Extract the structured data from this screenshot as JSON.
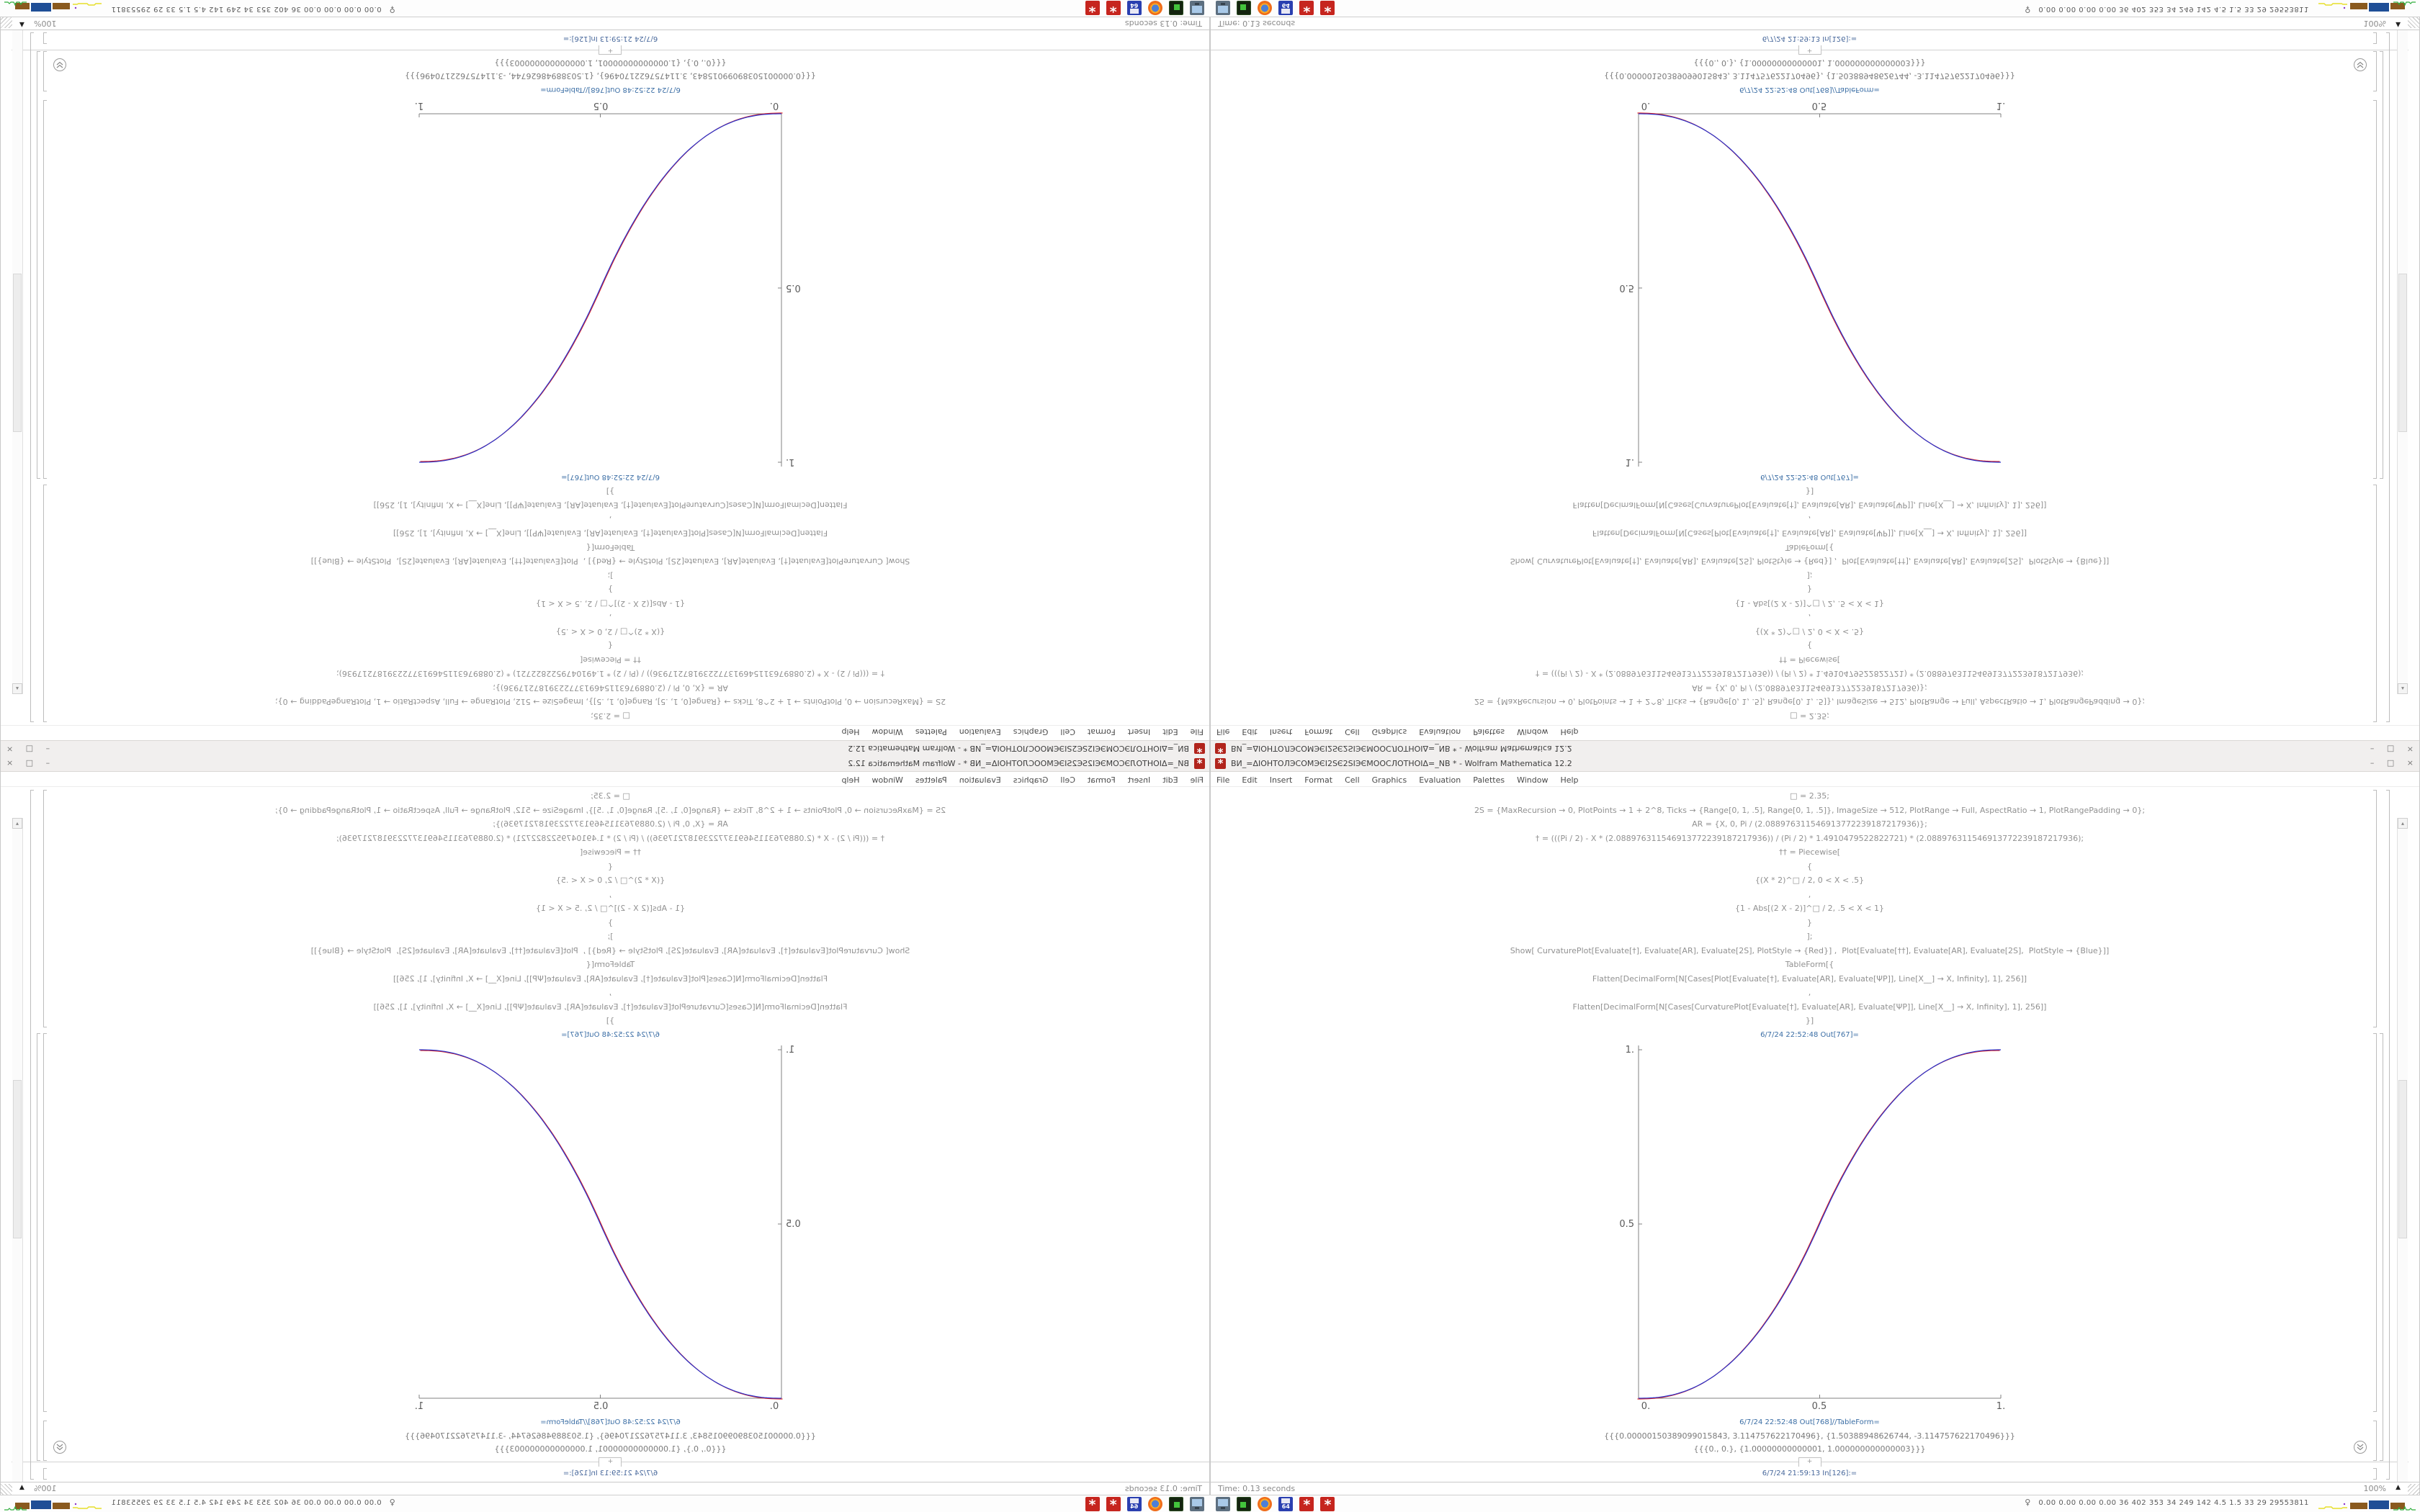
{
  "window": {
    "title": "ВИ_=ΔІОНТОЛЭСОМЭЄІ2SЄ2SІЭЄМООСЛОТНОІΔ=_NB * - Wolfram Mathematica 12.2",
    "menu": [
      "File",
      "Edit",
      "Insert",
      "Format",
      "Cell",
      "Graphics",
      "Evaluation",
      "Palettes",
      "Window",
      "Help"
    ],
    "buttons": {
      "minimize": "–",
      "maximize": "□",
      "close": "×"
    },
    "scroll_up_arrow": "▴"
  },
  "notebook": {
    "code_lines": [
      "□ = 2.35;",
      "2S = {MaxRecursion → 0, PlotPoints → 1 + 2^8, Ticks → {Range[0, 1, .5], Range[0, 1, .5]}, ImageSize → 512, PlotRange → Full, AspectRatio → 1, PlotRangePadding → 0};",
      "ΑR = {X, 0, Pi / (2.088976311546913772239187217936)};",
      "† = (((Pi / 2) - X * (2.088976311546913772239187217936)) / (Pi / 2) * 1.4910479522822721) * (2.088976311546913772239187217936);",
      "†† = Piecewise[",
      "{",
      "{(X * 2)^□ / 2, 0 < X < .5}",
      ",",
      "{1 - Abs[(2 X - 2)]^□ / 2, .5 < X < 1}",
      "}",
      "];",
      "Show[ CurvaturePlot[Evaluate[†], Evaluate[ΑR], Evaluate[2S], PlotStyle → {Red}] ,  Plot[Evaluate[††], Evaluate[ΑR], Evaluate[2S],  PlotStyle → {Blue}]]",
      "TableForm[{",
      "Flatten[DecimalForm[N[Cases[Plot[Evaluate[†], Evaluate[ΑR], Evaluate[ΨΡ]], Line[X__] → X, Infinity], 1], 256]]",
      ",",
      "Flatten[DecimalForm[N[Cases[CurvaturePlot[Evaluate[†], Evaluate[ΑR], Evaluate[ΨΡ]], Line[X__] → X, Infinity], 1], 256]]",
      "}]"
    ],
    "out_plot_label": "6/7/24 22:52:48 Out[767]=",
    "out_table_label": "6/7/24 22:52:48 Out[768]//TableForm=",
    "table_line1": "{{{0.00000150389099015843, 3.114757622170496}, {1.50388948626744, -3.114757622170496}}}",
    "table_line2": "{{{0., 0.}, {1.00000000000001, 1.000000000000003}}}",
    "in_label": "6/7/24 21:59:13 In[126]:=",
    "insert_plus": "+"
  },
  "chart_data": {
    "type": "line",
    "title": "Out[767]= Show[CurvaturePlot (Red), Plot (Blue)] — piecewise sigmoid, exponent □ = 2.35",
    "exponent": 2.35,
    "x": [
      0,
      0.05,
      0.1,
      0.15,
      0.2,
      0.25,
      0.3,
      0.35,
      0.4,
      0.45,
      0.5,
      0.55,
      0.6,
      0.65,
      0.7,
      0.75,
      0.8,
      0.85,
      0.9,
      0.95,
      1
    ],
    "series": [
      {
        "name": "CurvaturePlot",
        "color": "#dd2222",
        "values": [
          0,
          0.0022,
          0.0114,
          0.0295,
          0.0581,
          0.0981,
          0.1505,
          0.2162,
          0.296,
          0.3903,
          0.5,
          0.6097,
          0.704,
          0.7838,
          0.8495,
          0.9019,
          0.9419,
          0.9705,
          0.9886,
          0.9978,
          1
        ]
      },
      {
        "name": "Plot",
        "color": "#2a35cc",
        "values": [
          0,
          0.0022,
          0.0114,
          0.0295,
          0.0581,
          0.0981,
          0.1505,
          0.2162,
          0.296,
          0.3903,
          0.5,
          0.6097,
          0.704,
          0.7838,
          0.8495,
          0.9019,
          0.9419,
          0.9705,
          0.9886,
          0.9978,
          1
        ]
      }
    ],
    "xlabel": "",
    "ylabel": "",
    "xlim": [
      0,
      1
    ],
    "ylim": [
      0,
      1
    ],
    "xticks": [
      "0.",
      "0.5",
      "1."
    ],
    "yticks": [
      "1.",
      "0.5"
    ],
    "grid": false,
    "legend": "none"
  },
  "statusbar": {
    "time": "Time: 0.13 seconds",
    "zoom": "100%",
    "zoom_arrow": "▲"
  },
  "taskbar": {
    "icons": [
      "display-icon",
      "terminal-icon",
      "firefox-icon",
      "floppy64-icon",
      "mathematica-gear-icon",
      "mathematica-gear-icon"
    ],
    "floppy_text": "64",
    "gear_glyph": "*",
    "tray_glyph": "♀",
    "tray_text": "0.00 0.00 0.00 0.00  36  402  353  34  249  142  4.5  1.5  33  29  29553811"
  }
}
